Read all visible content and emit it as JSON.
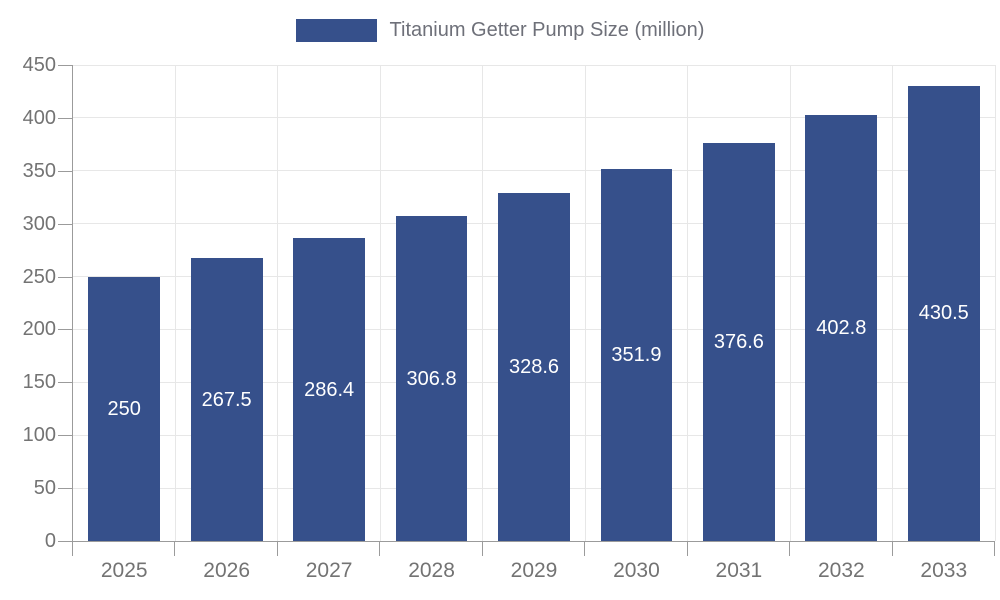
{
  "legend": {
    "label": "Titanium Getter Pump Size (million)"
  },
  "chart_data": {
    "type": "bar",
    "title": "",
    "series_name": "Titanium Getter Pump Size (million)",
    "categories": [
      "2025",
      "2026",
      "2027",
      "2028",
      "2029",
      "2030",
      "2031",
      "2032",
      "2033"
    ],
    "values": [
      250,
      267.5,
      286.4,
      306.8,
      328.6,
      351.9,
      376.6,
      402.8,
      430.5
    ],
    "value_labels": [
      "250",
      "267.5",
      "286.4",
      "306.8",
      "328.6",
      "351.9",
      "376.6",
      "402.8",
      "430.5"
    ],
    "xlabel": "",
    "ylabel": "",
    "ylim": [
      0,
      450
    ],
    "yticks": [
      0,
      50,
      100,
      150,
      200,
      250,
      300,
      350,
      400,
      450
    ],
    "grid": true,
    "legend_position": "top-center",
    "colors": {
      "bar": "#36508B",
      "bar_label": "#FFFFFF",
      "grid": "#E7E7E7",
      "axis": "#9B9B9B",
      "tick_label": "#737373",
      "legend_text": "#6E7079",
      "background": "#FFFFFF"
    }
  }
}
